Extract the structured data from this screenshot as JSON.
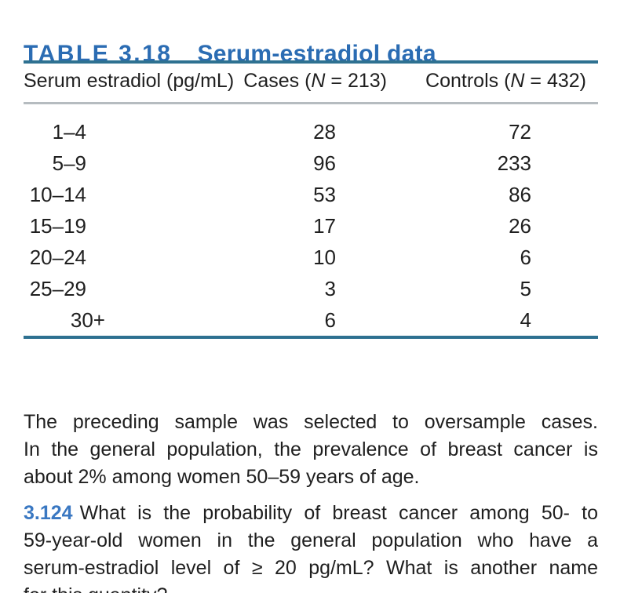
{
  "table": {
    "label": "TABLE 3.18",
    "caption": "Serum-estradiol data",
    "columns": {
      "serum": "Serum estradiol (pg/mL)",
      "cases": {
        "prefix": "Cases (",
        "n": "N",
        "suffix": " = 213)"
      },
      "controls": {
        "prefix": "Controls (",
        "n": "N",
        "suffix": " = 432)"
      }
    },
    "rows": [
      {
        "range": "1–4",
        "cases": "28",
        "controls": "72"
      },
      {
        "range": "5–9",
        "cases": "96",
        "controls": "233"
      },
      {
        "range": "10–14",
        "cases": "53",
        "controls": "86"
      },
      {
        "range": "15–19",
        "cases": "17",
        "controls": "26"
      },
      {
        "range": "20–24",
        "cases": "10",
        "controls": "6"
      },
      {
        "range": "25–29",
        "cases": "3",
        "controls": "5"
      },
      {
        "range": "30+",
        "cases": "6",
        "controls": "4"
      }
    ]
  },
  "note": {
    "lines": [
      "The preceding sample was selected to oversample cases.",
      "In the general population, the prevalence of breast cancer is",
      "about 2% among women 50–59 years of age."
    ]
  },
  "question": {
    "number": "3.124",
    "lines": [
      "What is the probability of breast cancer among 50- to",
      "59-year-old women in the general population who have a",
      "serum-estradiol level of ≥ 20 pg/mL? What is another name",
      "for this quantity?"
    ]
  },
  "colors": {
    "title_blue": "#2b6cb3",
    "exercise_number_blue": "#3a78c2",
    "rule_teal": "#2e7191",
    "rule_gray": "#b6bcc0",
    "body_text": "#1f1f1f"
  },
  "chart_data": {
    "type": "table",
    "title": "TABLE 3.18 Serum-estradiol data",
    "columns": [
      "Serum estradiol (pg/mL)",
      "Cases (N = 213)",
      "Controls (N = 432)"
    ],
    "rows": [
      [
        "1–4",
        28,
        72
      ],
      [
        "5–9",
        96,
        233
      ],
      [
        "10–14",
        53,
        86
      ],
      [
        "15–19",
        17,
        26
      ],
      [
        "20–24",
        10,
        6
      ],
      [
        "25–29",
        3,
        5
      ],
      [
        "30+",
        6,
        4
      ]
    ]
  }
}
